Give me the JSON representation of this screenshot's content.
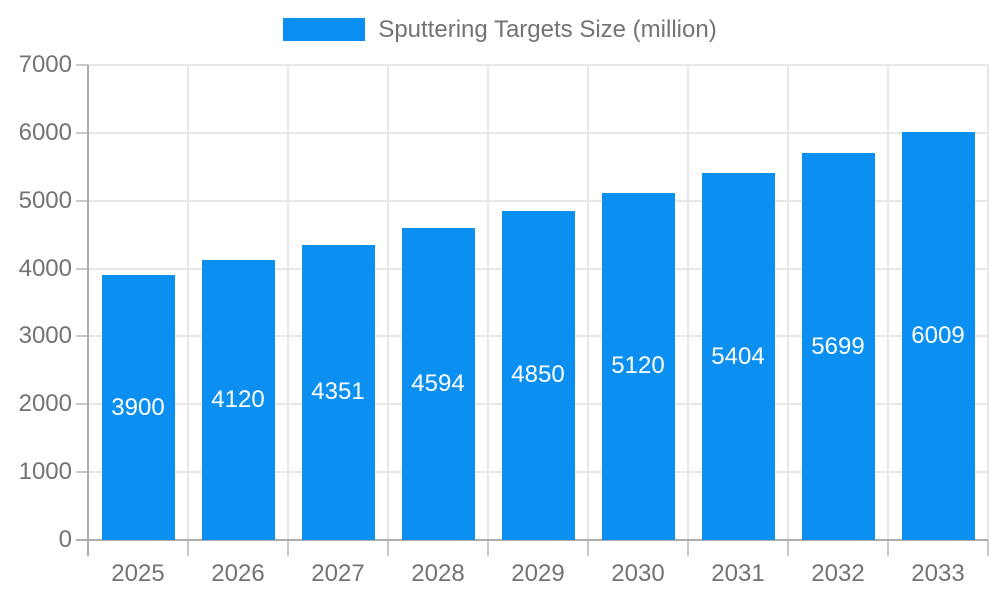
{
  "legend": {
    "label": "Sputtering Targets Size (million)"
  },
  "colors": {
    "bar": "#0b90f2",
    "grid": "#e7e7e7",
    "axis": "#adadad",
    "tick": "#c9c9c9",
    "text": "#737373",
    "value_label": "#ffffff"
  },
  "chart_data": {
    "type": "bar",
    "title": "",
    "series_name": "Sputtering Targets Size (million)",
    "categories": [
      "2025",
      "2026",
      "2027",
      "2028",
      "2029",
      "2030",
      "2031",
      "2032",
      "2033"
    ],
    "values": [
      3900,
      4120,
      4351,
      4594,
      4850,
      5120,
      5404,
      5699,
      6009
    ],
    "xlabel": "",
    "ylabel": "",
    "ylim": [
      0,
      7000
    ],
    "ytick_step": 1000,
    "ytick_labels": [
      "0",
      "1000",
      "2000",
      "3000",
      "4000",
      "5000",
      "6000",
      "7000"
    ],
    "grid": true,
    "legend_position": "top",
    "value_labels": "inside-center"
  }
}
